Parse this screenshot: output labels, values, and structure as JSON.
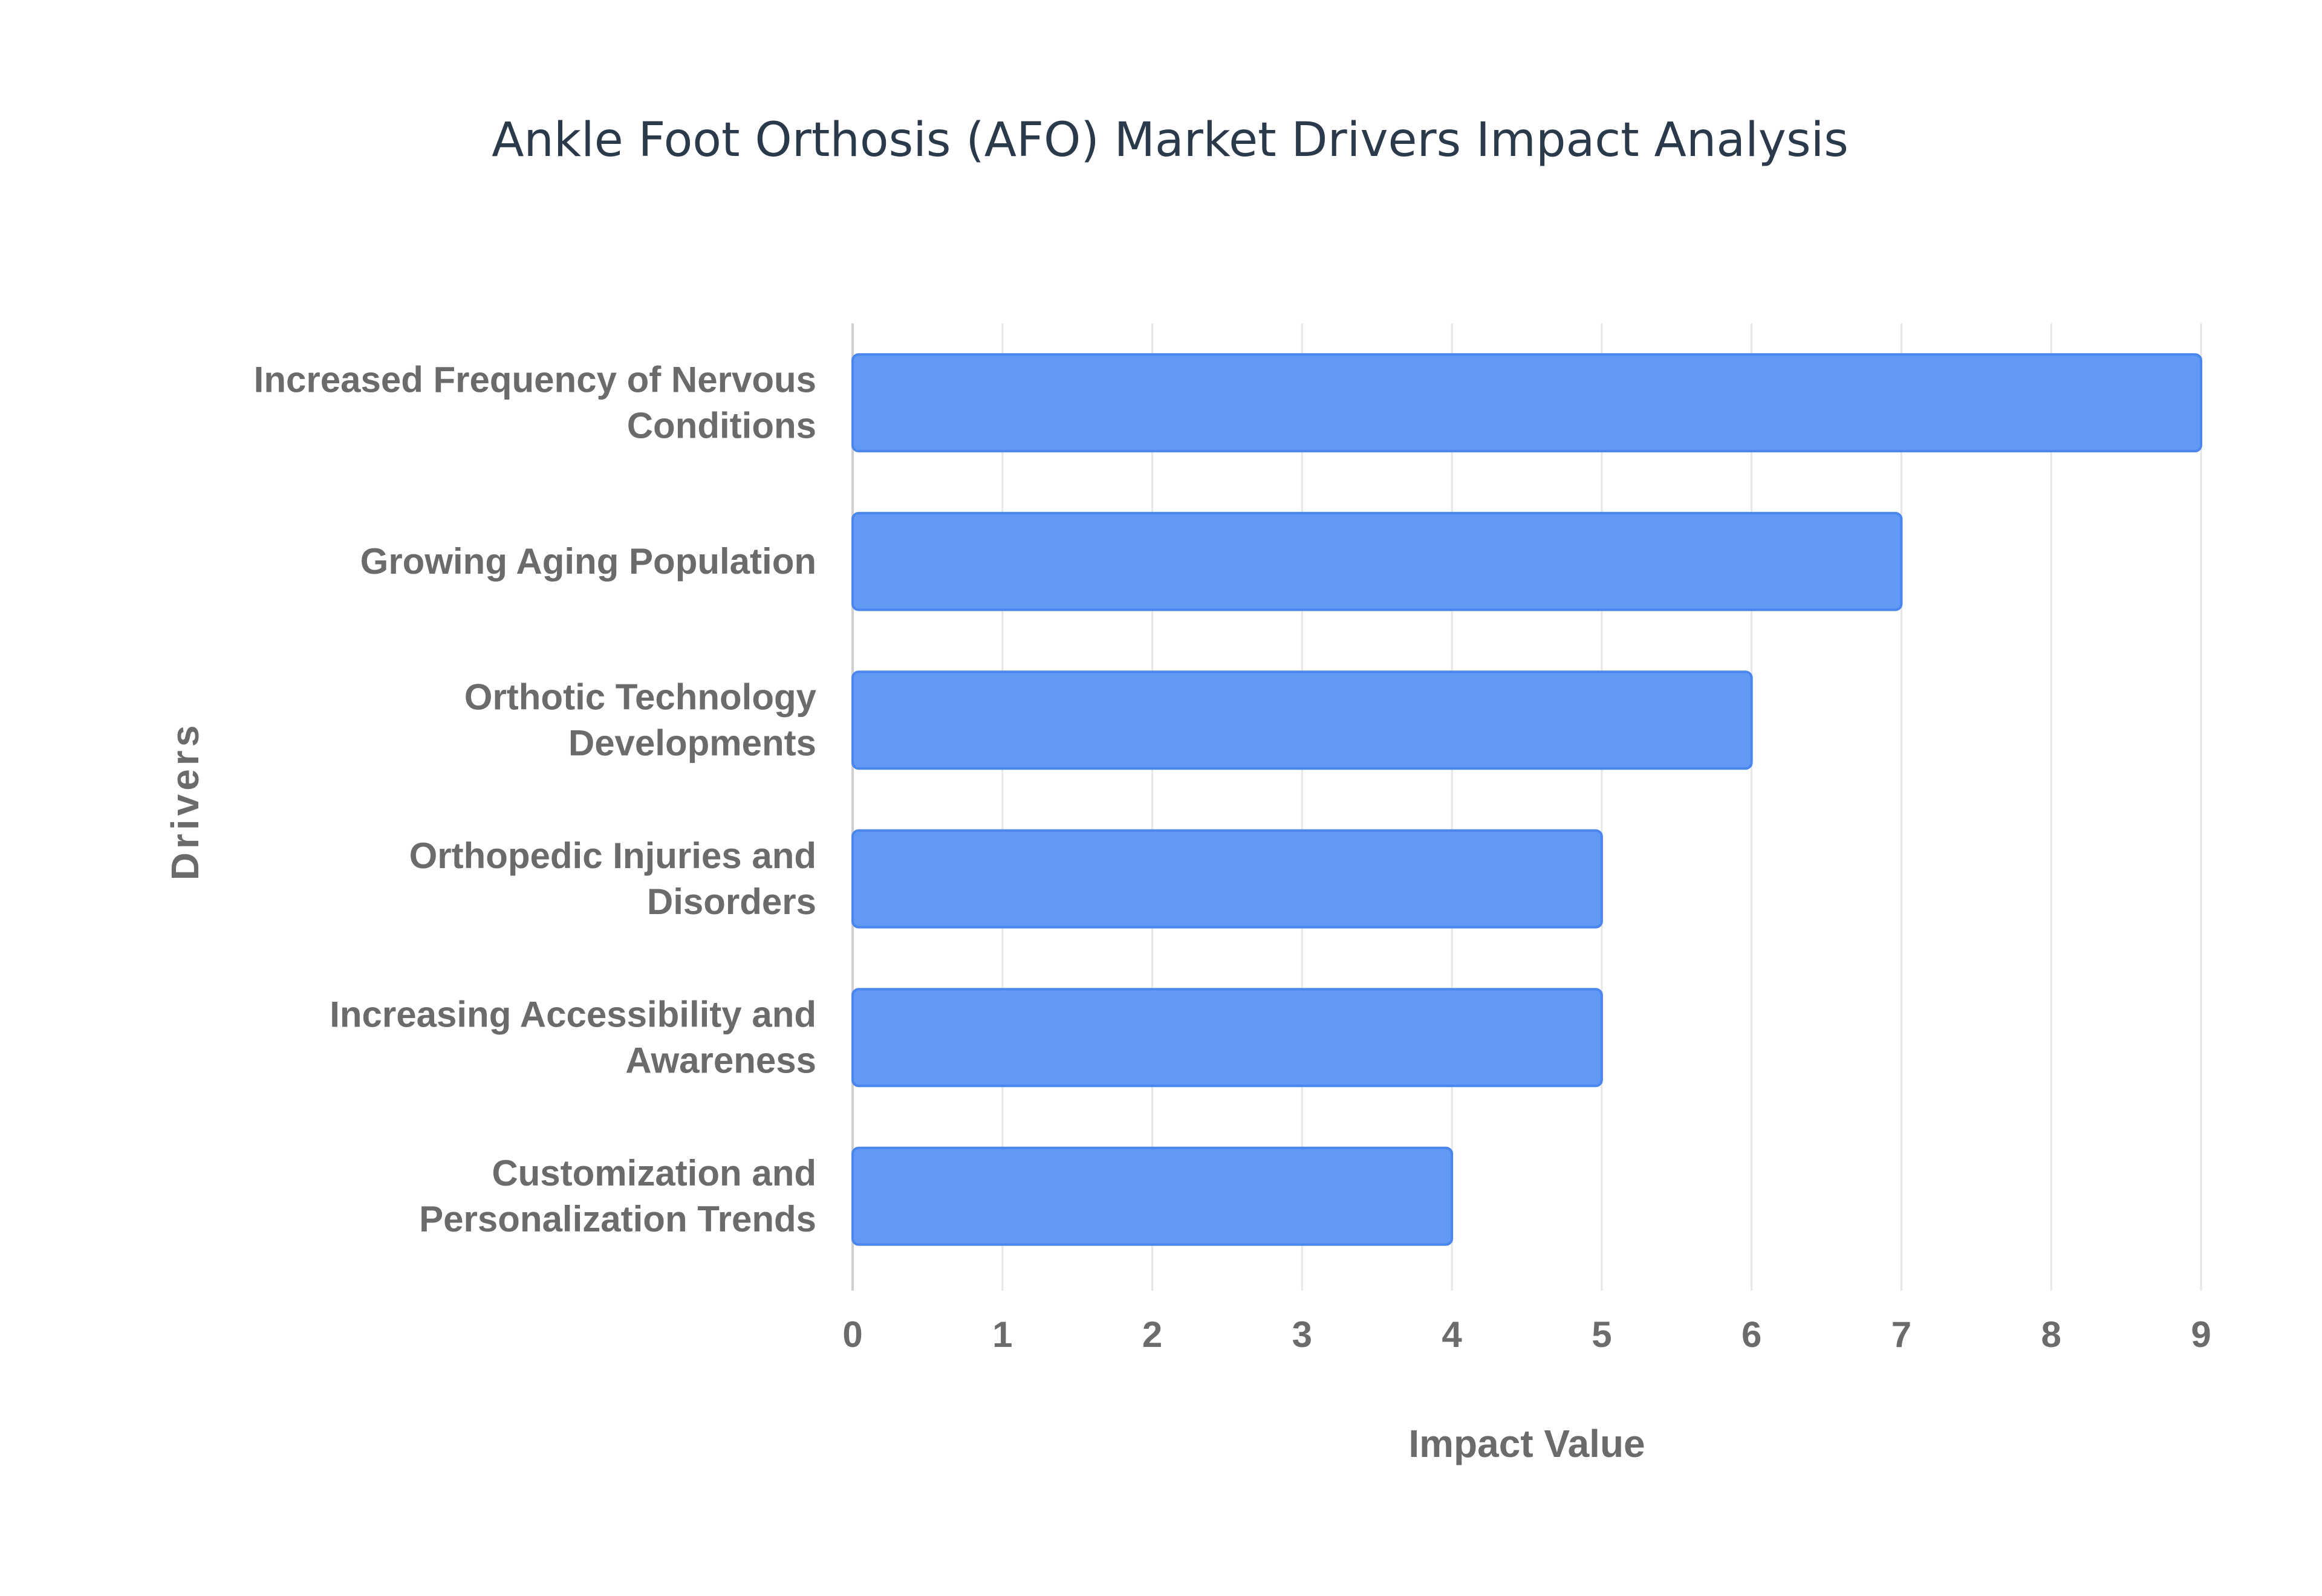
{
  "chart_data": {
    "type": "bar",
    "orientation": "horizontal",
    "title": "Ankle Foot Orthosis (AFO) Market Drivers Impact Analysis",
    "xlabel": "Impact Value",
    "ylabel": "Drivers",
    "categories": [
      "Increased Frequency of Nervous Conditions",
      "Growing Aging Population",
      "Orthotic Technology Developments",
      "Orthopedic Injuries and Disorders",
      "Increasing Accessibility and Awareness",
      "Customization and Personalization Trends"
    ],
    "category_label_lines": [
      [
        "Increased Frequency of Nervous",
        "Conditions"
      ],
      [
        "Growing Aging Population"
      ],
      [
        "Orthotic Technology",
        "Developments"
      ],
      [
        "Orthopedic Injuries and",
        "Disorders"
      ],
      [
        "Increasing Accessibility and",
        "Awareness"
      ],
      [
        "Customization and",
        "Personalization Trends"
      ]
    ],
    "values": [
      9,
      7,
      6,
      5,
      5,
      4
    ],
    "xlim": [
      0,
      9
    ],
    "xticks": [
      "0",
      "1",
      "2",
      "3",
      "4",
      "5",
      "6",
      "7",
      "8",
      "9"
    ],
    "grid": true,
    "legend": "none",
    "bar_color": "#6199f5",
    "bar_edge_color": "#4a86ee",
    "grid_color": "#e6e6e6"
  }
}
